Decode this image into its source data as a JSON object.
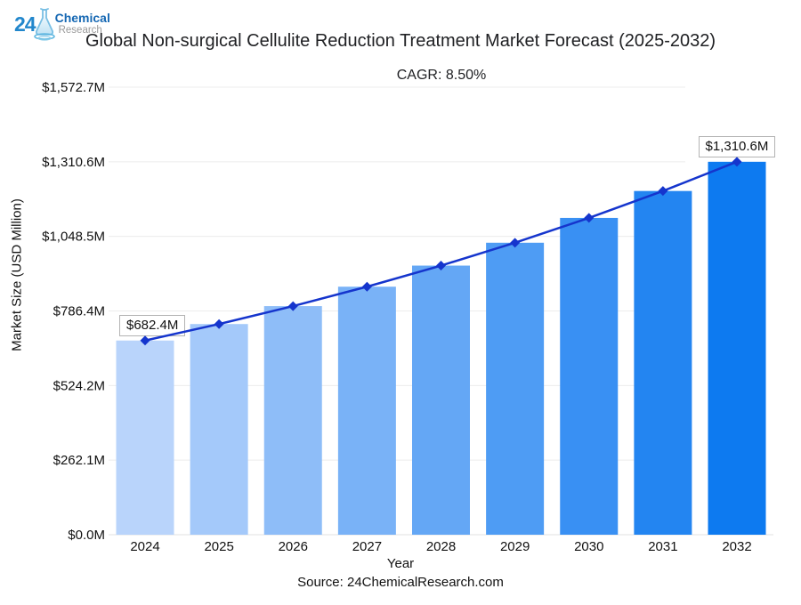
{
  "logo": {
    "number": "24",
    "name_top": "Chemical",
    "name_bottom": "Research"
  },
  "header": {
    "title": "Global Non-surgical Cellulite Reduction Treatment Market Forecast (2025-2032)",
    "subtitle": "CAGR: 8.50%"
  },
  "footer": {
    "source_label": "Source: 24ChemicalResearch.com"
  },
  "chart_data": {
    "type": "bar",
    "overlay": "line",
    "title": "Global Non-surgical Cellulite Reduction Treatment Market Forecast (2025-2032)",
    "subtitle": "CAGR: 8.50%",
    "categories": [
      "2024",
      "2025",
      "2026",
      "2027",
      "2028",
      "2029",
      "2030",
      "2031",
      "2032"
    ],
    "values": [
      682.4,
      740.4,
      803.3,
      871.6,
      945.7,
      1026.1,
      1113.3,
      1207.9,
      1310.6
    ],
    "cagr_percent": 8.5,
    "xlabel": "Year",
    "ylabel": "Market Size (USD Million)",
    "ylim": [
      0,
      1572.7
    ],
    "yticks": [
      0.0,
      262.1,
      524.2,
      786.4,
      1048.5,
      1310.6,
      1572.7
    ],
    "ytick_labels": [
      "$0.0M",
      "$262.1M",
      "$524.2M",
      "$786.4M",
      "$1,048.5M",
      "$1,310.6M",
      "$1,572.7M"
    ],
    "grid": true,
    "legend": false,
    "annotations": [
      {
        "category": "2024",
        "value": 682.4,
        "label": "$682.4M"
      },
      {
        "category": "2032",
        "value": 1310.6,
        "label": "$1,310.6M"
      }
    ],
    "bar_colors": [
      "#b9d4fb",
      "#a4c9fa",
      "#8ebdf8",
      "#79b2f7",
      "#64a7f5",
      "#4e9cf4",
      "#3990f3",
      "#2385f1",
      "#0d7af0"
    ],
    "line_color": "#1535cd",
    "grid_color": "#ececec",
    "axis_line_color": "#e0e0e0"
  }
}
